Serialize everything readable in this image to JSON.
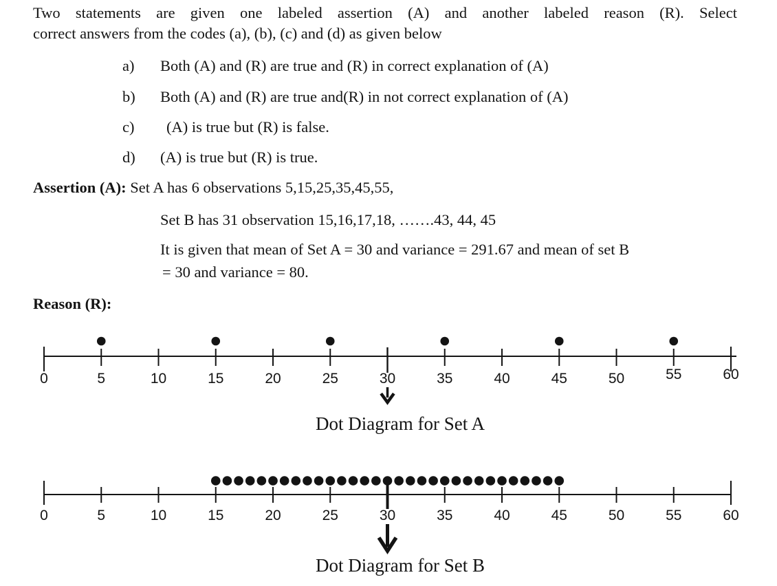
{
  "document": {
    "intro_line1": "Two statements are given one labeled assertion (A) and another labeled reason (R). Select",
    "intro_line2": "correct answers from the codes (a), (b), (c) and (d) as given below",
    "options": [
      {
        "marker": "a)",
        "text": "Both (A) and (R) are true and (R) in correct explanation of (A)"
      },
      {
        "marker": "b)",
        "text": "Both (A) and (R) are true and(R) in not correct explanation of (A)"
      },
      {
        "marker": "c)",
        "text": "(A) is true but (R) is false."
      },
      {
        "marker": "d)",
        "text": "(A) is true but (R) is true."
      }
    ],
    "assertion_label": "Assertion (A):",
    "assertion_line1": " Set A has 6 observations 5,15,25,35,45,55,",
    "assertion_line2": "Set B has 31 observation 15,16,17,18, …….43, 44, 45",
    "assertion_line3": "It is given that mean of Set A = 30 and variance = 291.67 and mean of set B",
    "assertion_line4": "= 30 and variance = 80.",
    "reason_label": "Reason (R):"
  },
  "chart_data": [
    {
      "type": "scatter",
      "subtype": "dot-plot",
      "title": "Dot Diagram for Set A",
      "axis_range": [
        0,
        60
      ],
      "ticks": [
        0,
        5,
        10,
        15,
        20,
        25,
        30,
        35,
        40,
        45,
        50,
        55,
        60
      ],
      "dots": [
        5,
        15,
        25,
        35,
        45,
        55
      ],
      "mean_marker": 30,
      "grid": false
    },
    {
      "type": "scatter",
      "subtype": "dot-plot",
      "title": "Dot Diagram for Set B",
      "axis_range": [
        0,
        60
      ],
      "ticks": [
        0,
        5,
        10,
        15,
        20,
        25,
        30,
        35,
        40,
        45,
        50,
        55,
        60
      ],
      "dots": [
        15,
        16,
        17,
        18,
        19,
        20,
        21,
        22,
        23,
        24,
        25,
        26,
        27,
        28,
        29,
        30,
        31,
        32,
        33,
        34,
        35,
        36,
        37,
        38,
        39,
        40,
        41,
        42,
        43,
        44,
        45
      ],
      "mean_marker": 30,
      "grid": false
    }
  ],
  "colors": {
    "ink": "#141414",
    "background": "#ffffff"
  }
}
